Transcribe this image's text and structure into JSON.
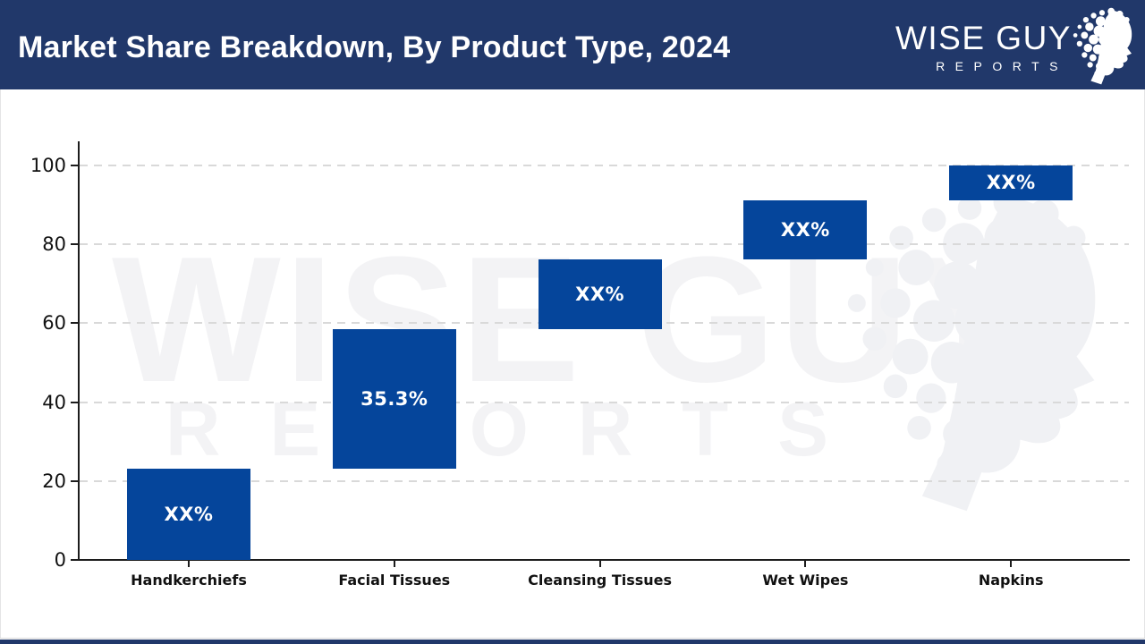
{
  "header": {
    "title": "Market Share Breakdown, By Product Type, 2024",
    "logo": {
      "line1": "WISE GUY",
      "line2": "REPORTS"
    }
  },
  "watermark": {
    "line1": "WISE GUY",
    "line2": "REPORTS"
  },
  "chart_data": {
    "type": "bar",
    "subtype": "waterfall",
    "title": "Market Share Breakdown, By Product Type, 2024",
    "categories": [
      "Handkerchiefs",
      "Facial Tissues",
      "Cleansing Tissues",
      "Wet Wipes",
      "Napkins"
    ],
    "segments": [
      {
        "category": "Handkerchiefs",
        "start": 0,
        "end": 23.2,
        "value": 23.2,
        "label": "XX%"
      },
      {
        "category": "Facial Tissues",
        "start": 23.2,
        "end": 58.5,
        "value": 35.3,
        "label": "35.3%"
      },
      {
        "category": "Cleansing Tissues",
        "start": 58.5,
        "end": 76.3,
        "value": 17.8,
        "label": "XX%"
      },
      {
        "category": "Wet Wipes",
        "start": 76.3,
        "end": 91.2,
        "value": 14.9,
        "label": "XX%"
      },
      {
        "category": "Napkins",
        "start": 91.2,
        "end": 100,
        "value": 8.8,
        "label": "XX%"
      }
    ],
    "y_ticks": [
      0,
      20,
      40,
      60,
      80,
      100
    ],
    "ylim": [
      0,
      106
    ],
    "xlabel": "",
    "ylabel": "",
    "grid": "horizontal-dashed",
    "legend": "none",
    "bar_color": "#05459b",
    "label_color": "#ffffff"
  },
  "colors": {
    "header_bg": "#21386a",
    "footer_bg": "#21386a",
    "axis": "#1c1c1c",
    "grid": "#d9d9d9",
    "watermark": "#f3f3f5"
  }
}
